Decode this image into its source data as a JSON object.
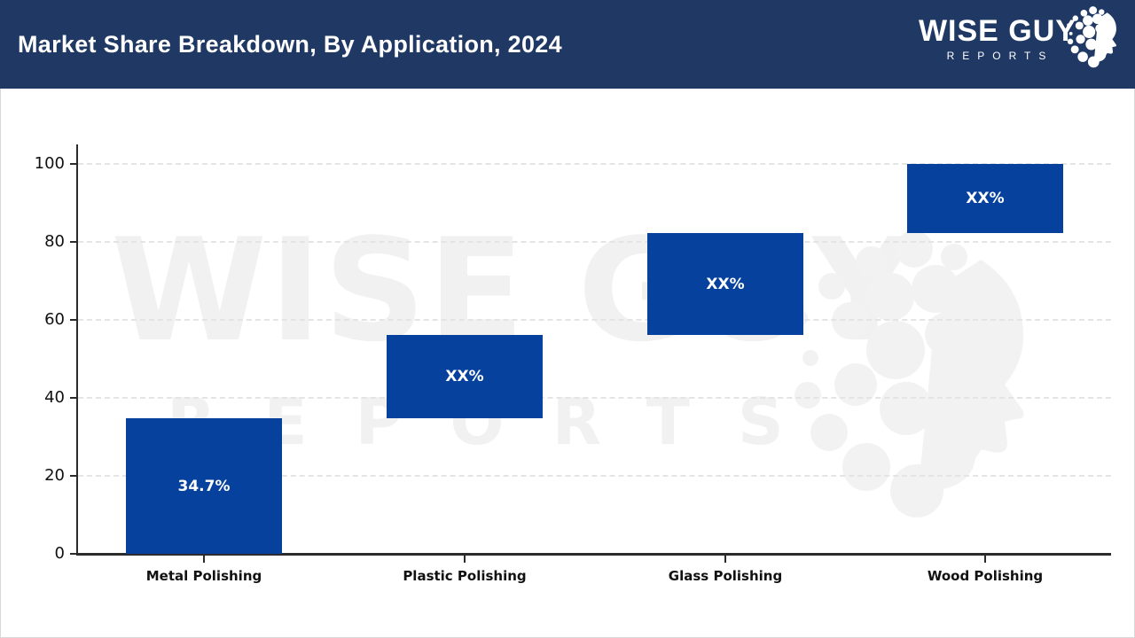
{
  "header": {
    "title": "Market Share Breakdown, By Application, 2024",
    "bg_color": "#1f3864",
    "logo": {
      "line1": "WISE GUY",
      "line2": "REPORTS"
    }
  },
  "watermark": {
    "line1": "WISE GUY",
    "line2": "REPORTS"
  },
  "chart_data": {
    "type": "bar",
    "subtype": "waterfall",
    "title": "Market Share Breakdown, By Application, 2024",
    "categories": [
      "Metal Polishing",
      "Plastic Polishing",
      "Glass Polishing",
      "Wood Polishing"
    ],
    "segments": [
      [
        0,
        34.7
      ],
      [
        34.7,
        56.1
      ],
      [
        56.1,
        82.3
      ],
      [
        82.3,
        100
      ]
    ],
    "increments": [
      34.7,
      21.4,
      26.2,
      17.7
    ],
    "bar_labels": [
      "34.7%",
      "XX%",
      "XX%",
      "XX%"
    ],
    "xlabel": "",
    "ylabel": "",
    "ylim": [
      0,
      100
    ],
    "yticks": [
      0,
      20,
      40,
      60,
      80,
      100
    ],
    "grid": "horizontal-dashed",
    "legend": "none",
    "bar_color": "#05419d",
    "label_color": "#ffffff"
  }
}
